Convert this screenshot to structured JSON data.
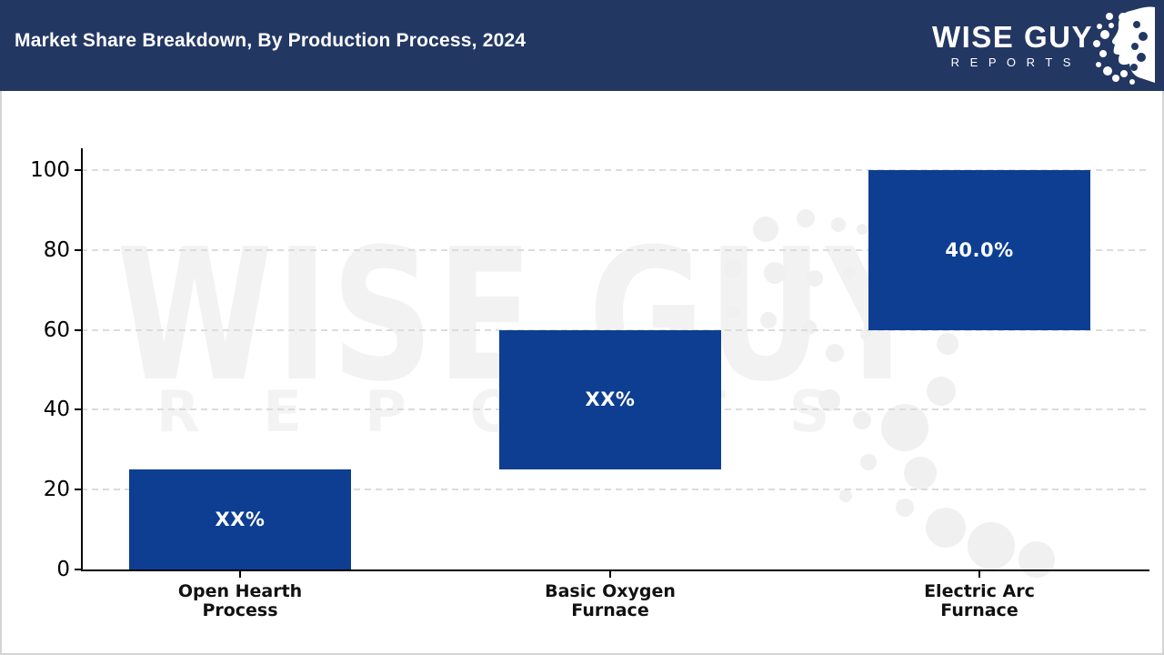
{
  "header": {
    "title": "Market Share Breakdown, By Production Process, 2024",
    "logo": {
      "wordmark": "WISE GUY",
      "subtext": "R E P O R T S"
    }
  },
  "watermark": {
    "line1": "WISE GUY",
    "line2": "R E P O R T S"
  },
  "chart_data": {
    "type": "bar",
    "subtype": "floating-segment-column",
    "title": "Market Share Breakdown, By Production Process, 2024",
    "categories": [
      "Open Hearth\nProcess",
      "Basic Oxygen\nFurnace",
      "Electric Arc\nFurnace"
    ],
    "series": [
      {
        "name": "Market share (%)",
        "segments": [
          {
            "category": "Open Hearth Process",
            "from": 0,
            "to": 25,
            "label": "XX%"
          },
          {
            "category": "Basic Oxygen Furnace",
            "from": 25,
            "to": 60,
            "label": "XX%"
          },
          {
            "category": "Electric Arc Furnace",
            "from": 60,
            "to": 100,
            "label": "40.0%"
          }
        ]
      }
    ],
    "ylim": [
      0,
      100
    ],
    "yticks": [
      0,
      20,
      40,
      60,
      80,
      100
    ],
    "xlabel": "",
    "ylabel": "",
    "grid": "horizontal dashed",
    "legend": "none",
    "colors": {
      "bar": "#0d3e92",
      "bar_label": "#ffffff"
    }
  },
  "colors": {
    "header_bg": "#233763",
    "header_text": "#ffffff",
    "page_bg": "#ffffff",
    "frame_border": "#d4d4d4",
    "gridline": "#dcdcdc",
    "axis": "#000000",
    "watermark": "#f2f2f2"
  }
}
